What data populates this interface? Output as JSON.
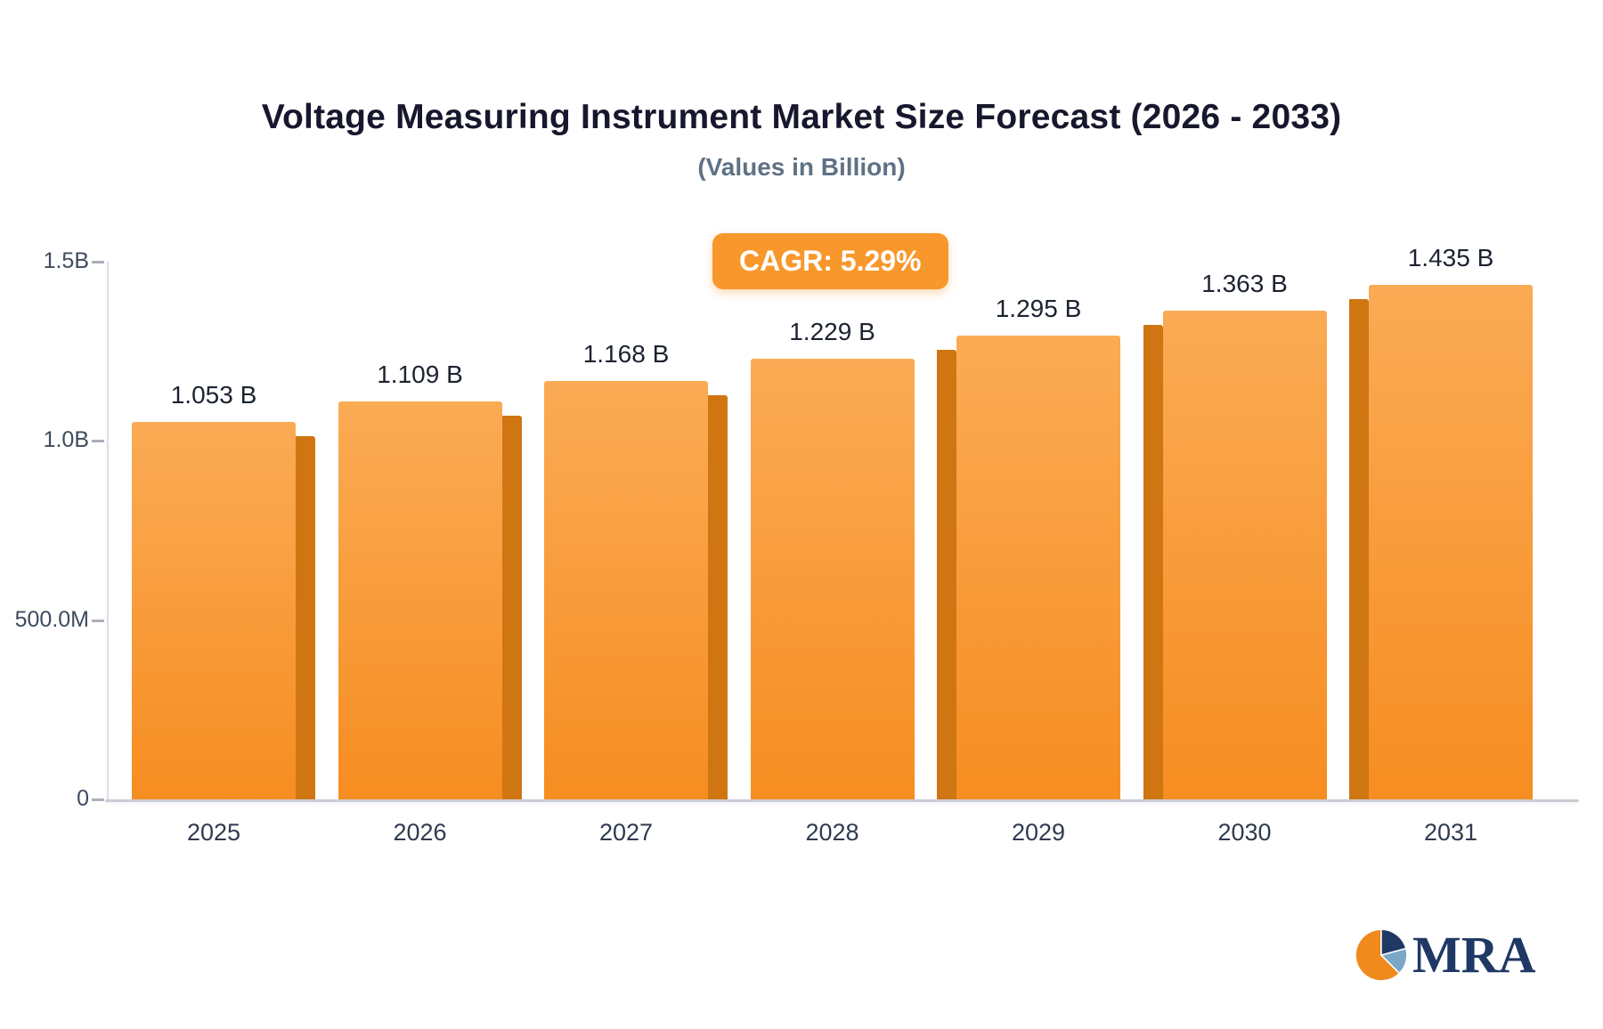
{
  "chart_data": {
    "type": "bar",
    "title": "Voltage Measuring Instrument Market Size Forecast (2026 - 2033)",
    "subtitle": "(Values in Billion)",
    "badge": "CAGR: 5.29%",
    "badge_color": "#f8982c",
    "categories": [
      "2025",
      "2026",
      "2027",
      "2028",
      "2029",
      "2030",
      "2031"
    ],
    "values": [
      1.053,
      1.109,
      1.168,
      1.229,
      1.295,
      1.363,
      1.435
    ],
    "value_labels": [
      "1.053 B",
      "1.109 B",
      "1.168 B",
      "1.229 B",
      "1.295 B",
      "1.363 B",
      "1.435 B"
    ],
    "xlabel": "",
    "ylabel": "",
    "ylim": [
      0,
      1.5
    ],
    "yticks": [
      {
        "value": 1.5,
        "label": "1.5B"
      },
      {
        "value": 1.0,
        "label": "1.0B"
      },
      {
        "value": 0.5,
        "label": "500.0M"
      },
      {
        "value": 0.0,
        "label": "0"
      }
    ],
    "grid": false,
    "legend": false,
    "bar_color_top": "#fbab55",
    "bar_color_bottom": "#f68d21",
    "bar_side_color": "#cf7613"
  },
  "logo": {
    "text": "MRA",
    "colors": {
      "navy": "#1f3864",
      "orange": "#f08a1d",
      "steel": "#7aa7c7"
    }
  }
}
